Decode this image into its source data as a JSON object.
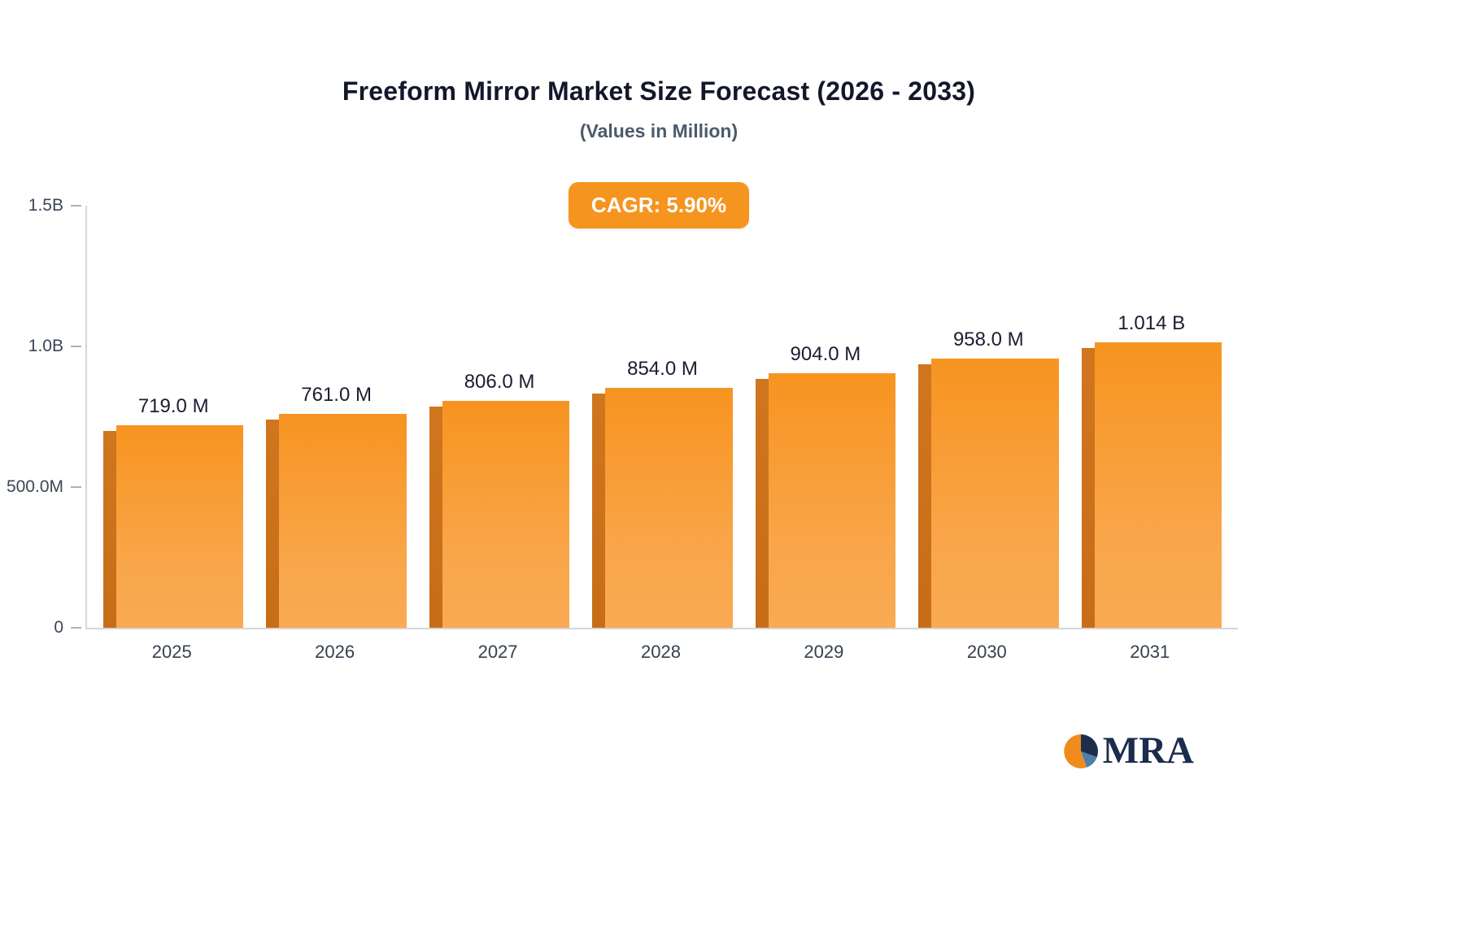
{
  "header": {
    "title": "Freeform Mirror Market Size Forecast (2026 - 2033)",
    "subtitle": "(Values in Million)",
    "cagr_label": "CAGR: 5.90%"
  },
  "chart_data": {
    "type": "bar",
    "title": "Freeform Mirror Market Size Forecast (2026 - 2033)",
    "subtitle": "(Values in Million)",
    "categories": [
      "2025",
      "2026",
      "2027",
      "2028",
      "2029",
      "2030",
      "2031"
    ],
    "values": [
      719,
      761,
      806,
      854,
      904,
      958,
      1014
    ],
    "value_labels": [
      "719.0 M",
      "761.0 M",
      "806.0 M",
      "854.0 M",
      "904.0 M",
      "958.0 M",
      "1.014 B"
    ],
    "ylim": [
      0,
      1500
    ],
    "y_ticks": [
      {
        "value": 1500,
        "label": "1.5B"
      },
      {
        "value": 1000,
        "label": "1.0B"
      },
      {
        "value": 500,
        "label": "500.0M"
      },
      {
        "value": 0,
        "label": "0"
      }
    ],
    "grid": false,
    "legend": "none",
    "annotation": "CAGR: 5.90%",
    "colors": {
      "bar_face_top": "#f79420",
      "bar_face_bottom": "#f9aa52",
      "bar_side": "#c76d18",
      "badge": "#f5941f",
      "axis": "#d6d6d6",
      "title": "#14172b",
      "label": "#1c1c30"
    }
  },
  "logo": {
    "text": "MRA"
  }
}
